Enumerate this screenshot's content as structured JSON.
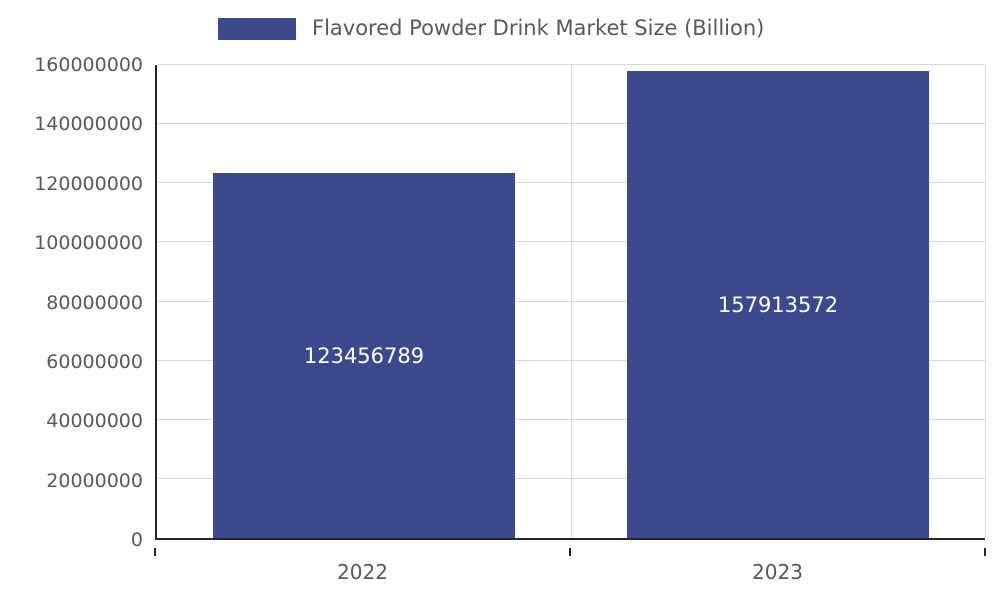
{
  "legend": {
    "label": "Flavored Powder Drink Market Size (Billion)",
    "swatch_color": "#3a4a8c"
  },
  "chart_data": {
    "type": "bar",
    "title": "Flavored Powder Drink Market Size (Billion)",
    "categories": [
      "2022",
      "2023"
    ],
    "values": [
      123456789,
      157913572
    ],
    "bar_labels": [
      "123456789",
      "157913572"
    ],
    "xlabel": "",
    "ylabel": "",
    "ylim": [
      0,
      160000000
    ],
    "yticks": [
      0,
      20000000,
      40000000,
      60000000,
      80000000,
      100000000,
      120000000,
      140000000,
      160000000
    ],
    "grid": true,
    "legend_position": "top-left",
    "colors": {
      "bar": "#3a4a8c",
      "bar_label_text": "#ffffff",
      "tick_text": "#595959",
      "legend_text": "#595959",
      "axis_line": "#262626",
      "gridline": "#d9d9d9",
      "background": "#ffffff"
    }
  }
}
